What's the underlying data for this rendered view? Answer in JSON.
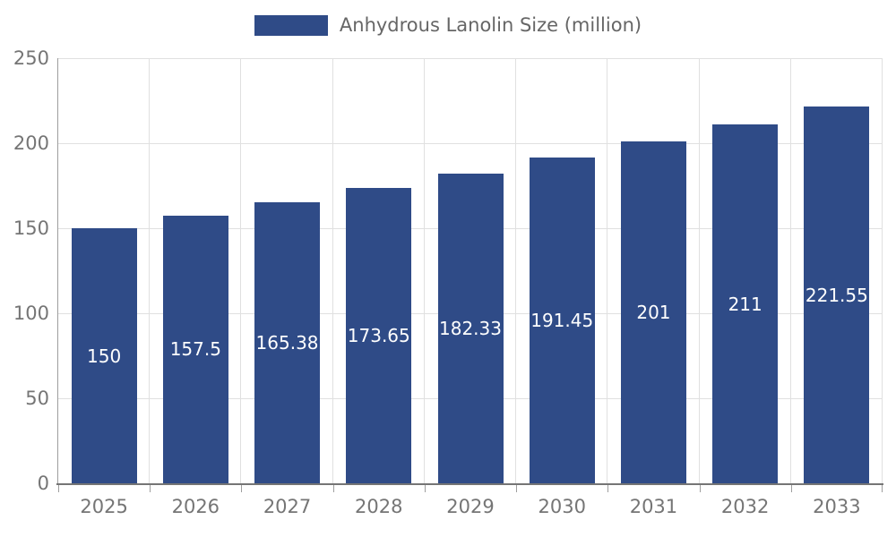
{
  "legend": {
    "label": "Anhydrous Lanolin Size (million)",
    "swatch_color": "#2f4b87"
  },
  "chart_data": {
    "type": "bar",
    "title": "Anhydrous Lanolin Size (million)",
    "categories": [
      "2025",
      "2026",
      "2027",
      "2028",
      "2029",
      "2030",
      "2031",
      "2032",
      "2033"
    ],
    "values": [
      150,
      157.5,
      165.38,
      173.65,
      182.33,
      191.45,
      201,
      211,
      221.55
    ],
    "labels": [
      "150",
      "157.5",
      "165.38",
      "173.65",
      "182.33",
      "191.45",
      "201",
      "211",
      "221.55"
    ],
    "xlabel": "",
    "ylabel": "",
    "ylim": [
      0,
      250
    ],
    "yticks": [
      0,
      50,
      100,
      150,
      200,
      250
    ],
    "bar_color": "#2f4b87",
    "value_label_color": "#ffffff",
    "grid": true,
    "legend_position": "top"
  }
}
